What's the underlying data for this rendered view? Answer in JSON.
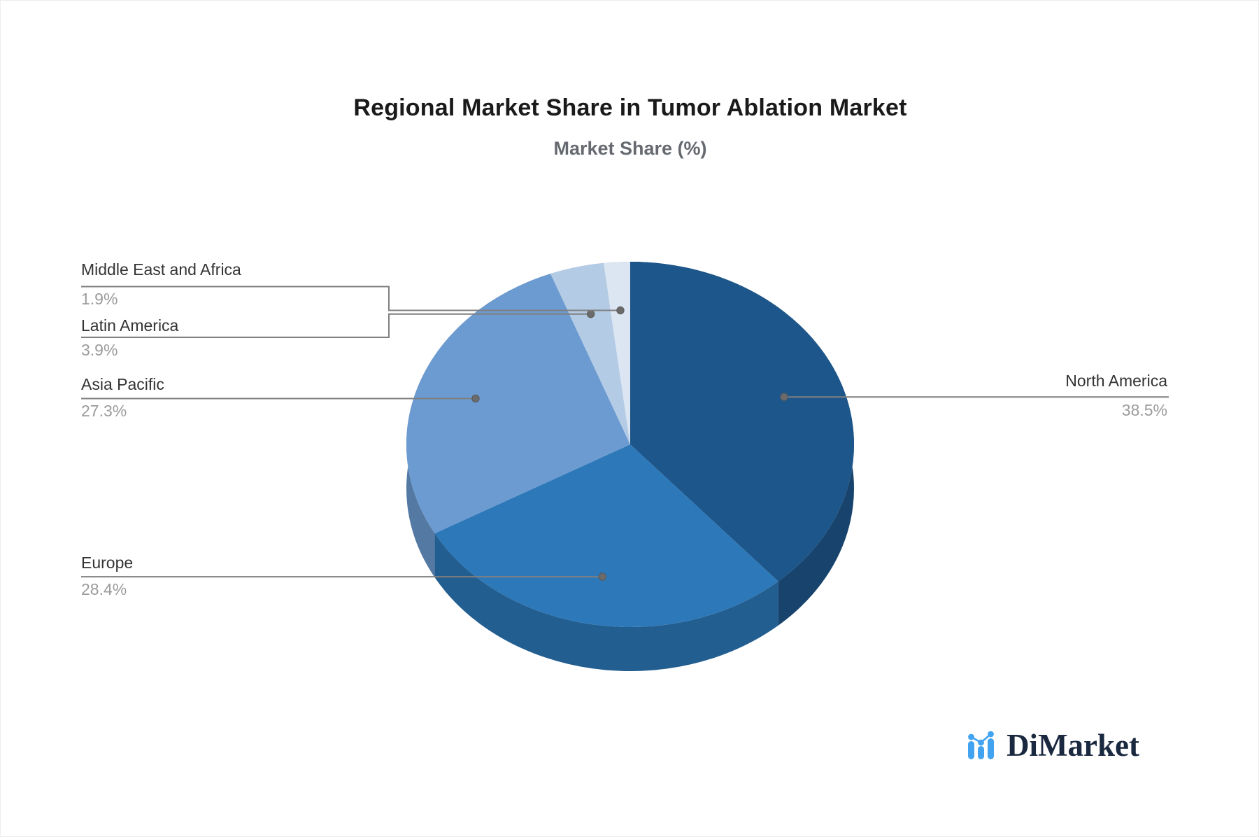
{
  "title": "Regional Market Share in Tumor Ablation Market",
  "subtitle": "Market Share (%)",
  "logo": {
    "text": "DiMarket",
    "icon": "bar-line-chart-icon"
  },
  "connector_color": "#7f7f7f",
  "chart_data": {
    "type": "pie",
    "title": "Regional Market Share in Tumor Ablation Market",
    "subtitle": "Market Share (%)",
    "unit": "%",
    "effect": "3d",
    "start_angle": "12-o-clock, clockwise",
    "legend_position": "callout-labels",
    "slices": [
      {
        "label": "North America",
        "value": 38.5,
        "display": "38.5%",
        "color": "#1d568a"
      },
      {
        "label": "Europe",
        "value": 28.4,
        "display": "28.4%",
        "color": "#2d78b9"
      },
      {
        "label": "Asia Pacific",
        "value": 27.3,
        "display": "27.3%",
        "color": "#6c9bd1"
      },
      {
        "label": "Latin America",
        "value": 3.9,
        "display": "3.9%",
        "color": "#b3cbe5"
      },
      {
        "label": "Middle East and Africa",
        "value": 1.9,
        "display": "1.9%",
        "color": "#dce6f2"
      }
    ]
  }
}
